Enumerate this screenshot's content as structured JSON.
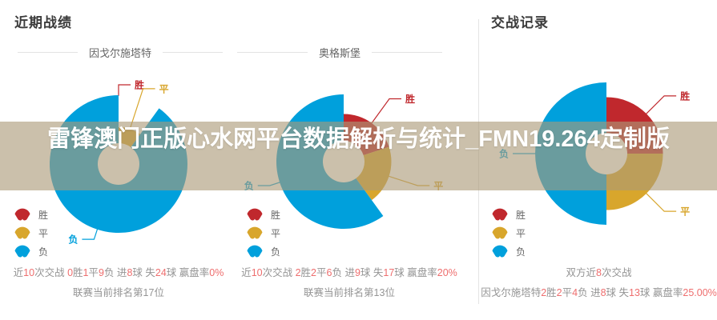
{
  "colors": {
    "win": "#c0282d",
    "draw": "#d8a62c",
    "lose": "#00a0dc",
    "stat_red": "#ee6e6e",
    "overlay_bg": "rgba(171,153,119,0.62)"
  },
  "overlay": {
    "text": "雷锋澳门正版心水网平台数据解析与统计_FMN19.264定制版"
  },
  "sections": {
    "recent": {
      "title": "近期战绩"
    },
    "h2h": {
      "title": "交战记录"
    }
  },
  "legend": [
    {
      "key": "win",
      "label": "胜"
    },
    {
      "key": "draw",
      "label": "平"
    },
    {
      "key": "lose",
      "label": "负"
    }
  ],
  "charts": [
    {
      "subtitle": "因戈尔施塔特",
      "stats1": [
        {
          "t": "近"
        },
        {
          "t": "10",
          "red": true
        },
        {
          "t": "次交战 "
        },
        {
          "t": "0",
          "red": true
        },
        {
          "t": "胜"
        },
        {
          "t": "1",
          "red": true
        },
        {
          "t": "平"
        },
        {
          "t": "9",
          "red": true
        },
        {
          "t": "负 进"
        },
        {
          "t": "8",
          "red": true
        },
        {
          "t": "球 失"
        },
        {
          "t": "24",
          "red": true
        },
        {
          "t": "球 赢盘率"
        },
        {
          "t": "0%",
          "red": true
        }
      ],
      "stats2": [
        {
          "t": "联赛当前排名第17位"
        }
      ]
    },
    {
      "subtitle": "奥格斯堡",
      "stats1": [
        {
          "t": "近"
        },
        {
          "t": "10",
          "red": true
        },
        {
          "t": "次交战 "
        },
        {
          "t": "2",
          "red": true
        },
        {
          "t": "胜"
        },
        {
          "t": "2",
          "red": true
        },
        {
          "t": "平"
        },
        {
          "t": "6",
          "red": true
        },
        {
          "t": "负 进"
        },
        {
          "t": "9",
          "red": true
        },
        {
          "t": "球 失"
        },
        {
          "t": "17",
          "red": true
        },
        {
          "t": "球 赢盘率"
        },
        {
          "t": "20%",
          "red": true
        }
      ],
      "stats2": [
        {
          "t": "联赛当前排名第13位"
        }
      ]
    },
    {
      "subtitle": "",
      "stats1": [
        {
          "t": "双方近"
        },
        {
          "t": "8",
          "red": true
        },
        {
          "t": "次交战"
        }
      ],
      "stats2": [
        {
          "t": "因戈尔施塔特"
        },
        {
          "t": "2",
          "red": true
        },
        {
          "t": "胜"
        },
        {
          "t": "2",
          "red": true
        },
        {
          "t": "平"
        },
        {
          "t": "4",
          "red": true
        },
        {
          "t": "负 进"
        },
        {
          "t": "8",
          "red": true
        },
        {
          "t": "球 失"
        },
        {
          "t": "13",
          "red": true
        },
        {
          "t": "球 赢盘率"
        },
        {
          "t": "25.00%",
          "red": true
        }
      ]
    }
  ],
  "chart_data": [
    {
      "type": "pie",
      "variant": "rose_donut",
      "title": "因戈尔施塔特 近10次交战",
      "categories": [
        "胜",
        "平",
        "负"
      ],
      "values": [
        0,
        1,
        9
      ],
      "colors": [
        "#c0282d",
        "#d8a62c",
        "#00a0dc"
      ],
      "legend_position": "bottom-left",
      "donut": true
    },
    {
      "type": "pie",
      "variant": "rose_donut",
      "title": "奥格斯堡 近10次交战",
      "categories": [
        "胜",
        "平",
        "负"
      ],
      "values": [
        2,
        2,
        6
      ],
      "colors": [
        "#c0282d",
        "#d8a62c",
        "#00a0dc"
      ],
      "legend_position": "bottom-left",
      "donut": true
    },
    {
      "type": "pie",
      "variant": "rose_donut",
      "title": "交战记录 双方近8次交战",
      "categories": [
        "胜",
        "平",
        "负"
      ],
      "values": [
        2,
        2,
        4
      ],
      "colors": [
        "#c0282d",
        "#d8a62c",
        "#00a0dc"
      ],
      "legend_position": "bottom-left",
      "donut": true
    }
  ]
}
